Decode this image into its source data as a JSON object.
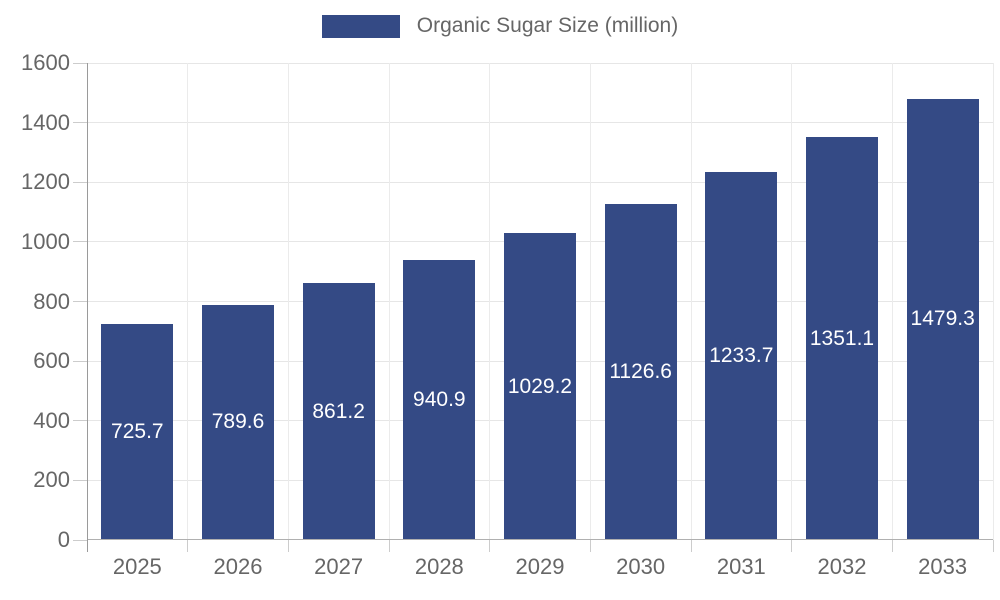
{
  "chart_data": {
    "type": "bar",
    "title": "Organic Sugar Size (million)",
    "categories": [
      "2025",
      "2026",
      "2027",
      "2028",
      "2029",
      "2030",
      "2031",
      "2032",
      "2033"
    ],
    "values": [
      725.7,
      789.6,
      861.2,
      940.9,
      1029.2,
      1126.6,
      1233.7,
      1351.1,
      1479.3
    ],
    "xlabel": "",
    "ylabel": "",
    "ylim": [
      0,
      1600
    ],
    "yticks": [
      0,
      200,
      400,
      600,
      800,
      1000,
      1200,
      1400,
      1600
    ],
    "grid": true,
    "legend_position": "top-center",
    "value_labels": "inside-center-white",
    "colors": {
      "bar": "#344a85",
      "value_label": "#ffffff",
      "axis_text": "#666666",
      "legend_text": "#666666",
      "grid_h": "#e6e6e6",
      "grid_v": "#ebebeb",
      "axis_line": "#9a9a9a",
      "baseline": "#b0b0b0",
      "tick": "#cccccc",
      "background": "#ffffff"
    }
  }
}
